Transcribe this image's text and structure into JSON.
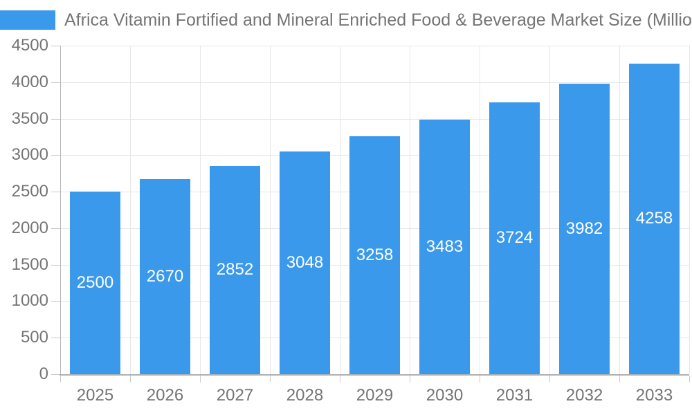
{
  "legend": {
    "label": "Africa Vitamin Fortified and Mineral Enriched Food & Beverage Market Size (Million)",
    "swatch_color": "#3b99ec"
  },
  "chart_data": {
    "type": "bar",
    "title": "Africa Vitamin Fortified and Mineral Enriched Food & Beverage Market Size (Million)",
    "categories": [
      "2025",
      "2026",
      "2027",
      "2028",
      "2029",
      "2030",
      "2031",
      "2032",
      "2033"
    ],
    "values": [
      2500,
      2670,
      2852,
      3048,
      3258,
      3483,
      3724,
      3982,
      4258
    ],
    "xlabel": "",
    "ylabel": "",
    "ylim": [
      0,
      4500
    ],
    "yticks": [
      0,
      500,
      1000,
      1500,
      2000,
      2500,
      3000,
      3500,
      4000,
      4500
    ],
    "grid": true,
    "legend_position": "top-left",
    "colors": {
      "bar": "#3b99ec",
      "value_label": "#ffffff",
      "axis_text": "#757575",
      "gridline": "#e6e6e6",
      "axis_line": "#b0b0b0"
    }
  }
}
